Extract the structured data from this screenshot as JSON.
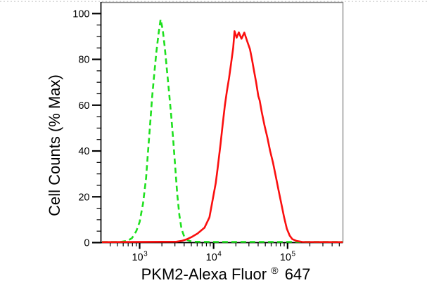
{
  "figure": {
    "background": "#ffffff",
    "frame_top_right_color": "#8f8f8f",
    "axis_color": "#000000",
    "top_dotted_border_color": "#c6c6c6"
  },
  "chart_data": {
    "type": "line",
    "subtype": "flow-cytometry-overlay-histogram",
    "title": "",
    "xlabel": "PKM2-Alexa Fluor® 647",
    "xlabel_parts": {
      "pre": "PKM2-Alexa Fluor",
      "sup": "®",
      "post": "647"
    },
    "ylabel": "Cell Counts (% Max)",
    "x_scale": "log10",
    "x_range": [
      300,
      560000
    ],
    "y_range": [
      0,
      105
    ],
    "grid": false,
    "legend": "none",
    "y_major_ticks": [
      0,
      20,
      40,
      60,
      80,
      100
    ],
    "y_tick_labels": [
      "0",
      "20",
      "40",
      "60",
      "80",
      "100"
    ],
    "y_minor_ticks": [
      5,
      10,
      15,
      25,
      30,
      35,
      45,
      50,
      55,
      65,
      70,
      75,
      85,
      90,
      95
    ],
    "x_major_ticks": [
      1000,
      10000,
      100000
    ],
    "x_tick_labels": [
      {
        "base": "10",
        "exp": "3",
        "value": 1000
      },
      {
        "base": "10",
        "exp": "4",
        "value": 10000
      },
      {
        "base": "10",
        "exp": "5",
        "value": 100000
      }
    ],
    "x_minor_ticks": [
      400,
      500,
      600,
      700,
      800,
      900,
      2000,
      3000,
      4000,
      5000,
      6000,
      7000,
      8000,
      9000,
      20000,
      30000,
      40000,
      50000,
      60000,
      70000,
      80000,
      90000,
      200000,
      300000,
      400000,
      500000
    ],
    "series": [
      {
        "id": "green_dashed",
        "color": "#1ee01e",
        "line_style": "dashed",
        "points": [
          [
            310,
            0.3
          ],
          [
            550,
            0.3
          ],
          [
            690,
            0.8
          ],
          [
            790,
            2
          ],
          [
            900,
            5
          ],
          [
            1000,
            9
          ],
          [
            1110,
            17
          ],
          [
            1220,
            28
          ],
          [
            1300,
            40
          ],
          [
            1390,
            52
          ],
          [
            1480,
            64
          ],
          [
            1580,
            74
          ],
          [
            1680,
            83
          ],
          [
            1800,
            91
          ],
          [
            1920,
            97.5
          ],
          [
            2050,
            93
          ],
          [
            2190,
            85
          ],
          [
            2330,
            76
          ],
          [
            2490,
            66
          ],
          [
            2660,
            56
          ],
          [
            2840,
            45
          ],
          [
            3030,
            33
          ],
          [
            3230,
            21
          ],
          [
            3450,
            12
          ],
          [
            3680,
            6
          ],
          [
            4020,
            2.5
          ],
          [
            4480,
            1
          ],
          [
            5100,
            0.4
          ],
          [
            9400,
            0.3
          ],
          [
            556000,
            0.3
          ]
        ]
      },
      {
        "id": "red_solid",
        "color": "#fa0f0f",
        "line_style": "solid",
        "points": [
          [
            310,
            0.2
          ],
          [
            3160,
            0.4
          ],
          [
            3760,
            0.8
          ],
          [
            4380,
            1.5
          ],
          [
            5100,
            2.5
          ],
          [
            6070,
            4
          ],
          [
            7530,
            6.5
          ],
          [
            8770,
            11
          ],
          [
            10000,
            21
          ],
          [
            10700,
            26
          ],
          [
            11400,
            33
          ],
          [
            12400,
            43
          ],
          [
            13300,
            52
          ],
          [
            14200,
            60
          ],
          [
            15100,
            66
          ],
          [
            16200,
            72
          ],
          [
            17200,
            78
          ],
          [
            18400,
            85
          ],
          [
            19200,
            92.3
          ],
          [
            20500,
            89.5
          ],
          [
            21900,
            91.8
          ],
          [
            23800,
            89
          ],
          [
            26000,
            91.7
          ],
          [
            28400,
            88
          ],
          [
            31000,
            84.5
          ],
          [
            33000,
            80
          ],
          [
            35200,
            75
          ],
          [
            37600,
            70
          ],
          [
            40200,
            64
          ],
          [
            42000,
            62
          ],
          [
            44800,
            57
          ],
          [
            48900,
            51
          ],
          [
            53200,
            46
          ],
          [
            58100,
            40
          ],
          [
            63400,
            35
          ],
          [
            69200,
            29
          ],
          [
            75300,
            23
          ],
          [
            82200,
            17
          ],
          [
            89700,
            11
          ],
          [
            97900,
            6
          ],
          [
            107000,
            3
          ],
          [
            116000,
            1.5
          ],
          [
            133000,
            0.7
          ],
          [
            158000,
            0.3
          ],
          [
            556000,
            0.2
          ]
        ]
      }
    ]
  }
}
